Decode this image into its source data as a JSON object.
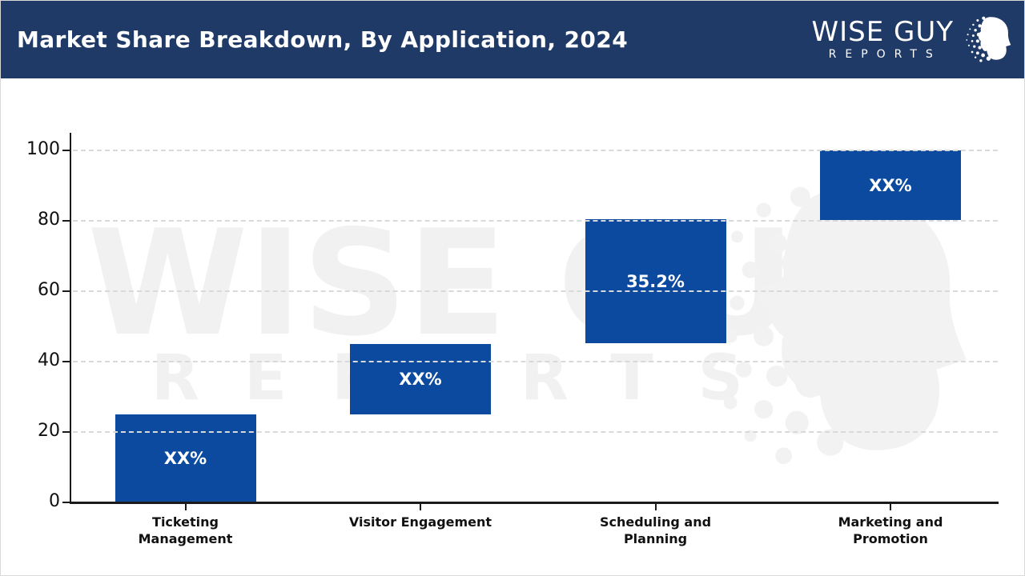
{
  "header": {
    "title": "Market Share Breakdown, By Application, 2024",
    "bg_color": "#1f3a67",
    "logo": {
      "line1": "WISE GUY",
      "line2": "REPORTS"
    }
  },
  "watermark": {
    "line1": "WISE GUY",
    "line2": "REPORTS"
  },
  "chart_data": {
    "type": "bar",
    "subtype": "floating-waterfall",
    "title": "Market Share Breakdown, By Application, 2024",
    "categories": [
      "Ticketing Management",
      "Visitor Engagement",
      "Scheduling and Planning",
      "Marketing and Promotion"
    ],
    "bars": [
      {
        "category": "Ticketing Management",
        "label_lines": [
          "Ticketing",
          "Management"
        ],
        "start": 0,
        "end": 25.1,
        "value": 25.1,
        "label": "XX%"
      },
      {
        "category": "Visitor Engagement",
        "label_lines": [
          "Visitor Engagement"
        ],
        "start": 25.1,
        "end": 44.9,
        "value": 19.8,
        "label": "XX%"
      },
      {
        "category": "Scheduling and Planning",
        "label_lines": [
          "Scheduling and",
          "Planning"
        ],
        "start": 45.2,
        "end": 80.4,
        "value": 35.2,
        "label": "35.2%"
      },
      {
        "category": "Marketing and Promotion",
        "label_lines": [
          "Marketing and",
          "Promotion"
        ],
        "start": 80.2,
        "end": 100,
        "value": 19.8,
        "label": "XX%"
      }
    ],
    "xlabel": "",
    "ylabel": "",
    "ylim": [
      0,
      100
    ],
    "yticks": [
      0,
      20,
      40,
      60,
      80,
      100
    ],
    "grid": "horizontal dashed, drawn over bars",
    "legend": null,
    "bar_color": "#0b4a9e",
    "bar_label_color": "#ffffff",
    "axis_color": "#1a1a1a",
    "gridline_color": "#d9d9d9"
  }
}
